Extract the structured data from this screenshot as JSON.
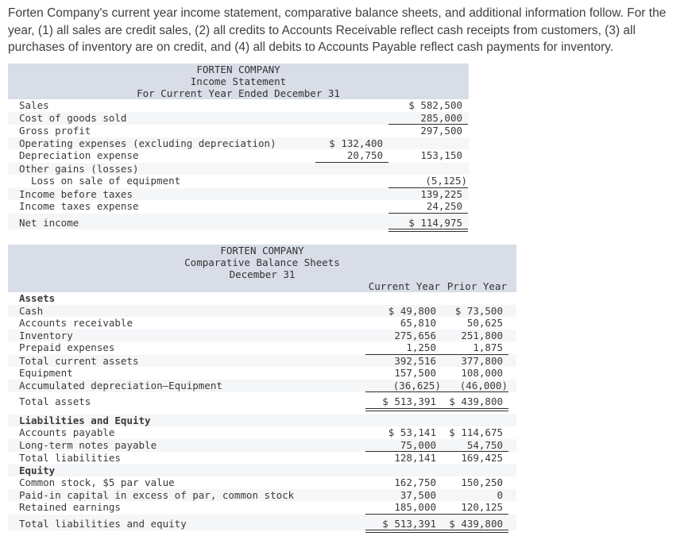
{
  "intro": "Forten Company's current year income statement, comparative balance sheets, and additional information follow. For the year, (1) all sales are credit sales, (2) all credits to Accounts Receivable reflect cash receipts from customers, (3) all purchases of inventory are on credit, and (4) all debits to Accounts Payable reflect cash payments for inventory.",
  "colors": {
    "header_band": "#d9dde7",
    "row_stripe": "#f5f6f8",
    "text": "#3a3a3a",
    "rule_line": "#2e2e2e"
  },
  "income_statement": {
    "title_lines": [
      "FORTEN COMPANY",
      "Income Statement",
      "For Current Year Ended December 31"
    ],
    "rows": [
      {
        "label": "Sales",
        "col2": "$ 582,500"
      },
      {
        "label": "Cost of goods sold",
        "col2": "285,000",
        "col2_line": true
      },
      {
        "label": "Gross profit",
        "col2": "297,500"
      },
      {
        "label": "Operating expenses (excluding depreciation)",
        "col1": "$ 132,400"
      },
      {
        "label": "Depreciation expense",
        "col1": "20,750",
        "col1_line": true,
        "col2": "153,150"
      },
      {
        "label": "Other gains (losses)"
      },
      {
        "label": "Loss on sale of equipment",
        "indent": true,
        "col2": "(5,125)",
        "col2_line": true
      },
      {
        "label": "Income before taxes",
        "col2": "139,225"
      },
      {
        "label": "Income taxes expense",
        "col2": "24,250",
        "col2_line": true
      },
      {
        "label": "Net income",
        "col2": "$ 114,975",
        "col2_double": true,
        "total": true
      }
    ]
  },
  "balance_sheet": {
    "title_lines": [
      "FORTEN COMPANY",
      "Comparative Balance Sheets",
      "December 31"
    ],
    "col_headers": [
      "Current Year",
      "Prior Year"
    ],
    "rows": [
      {
        "label": "Assets",
        "bold": true
      },
      {
        "label": "Cash",
        "col1": "$ 49,800",
        "col2": "$ 73,500"
      },
      {
        "label": "Accounts receivable",
        "col1": "65,810",
        "col2": "50,625"
      },
      {
        "label": "Inventory",
        "col1": "275,656",
        "col2": "251,800"
      },
      {
        "label": "Prepaid expenses",
        "col1": "1,250",
        "col2": "1,875",
        "line": true
      },
      {
        "label": "Total current assets",
        "col1": "392,516",
        "col2": "377,800"
      },
      {
        "label": "Equipment",
        "col1": "157,500",
        "col2": "108,000"
      },
      {
        "label": "Accumulated depreciation—Equipment",
        "col1": "(36,625)",
        "col2": "(46,000)",
        "line": true
      },
      {
        "label": "Total assets",
        "col1": "$ 513,391",
        "col2": "$ 439,800",
        "double": true,
        "total": true
      },
      {
        "label": "Liabilities and Equity",
        "bold": true
      },
      {
        "label": "Accounts payable",
        "col1": "$ 53,141",
        "col2": "$ 114,675"
      },
      {
        "label": "Long-term notes payable",
        "col1": "75,000",
        "col2": "54,750",
        "line": true
      },
      {
        "label": "Total liabilities",
        "col1": "128,141",
        "col2": "169,425"
      },
      {
        "label": "Equity",
        "bold": true
      },
      {
        "label": "Common stock, $5 par value",
        "col1": "162,750",
        "col2": "150,250"
      },
      {
        "label": "Paid-in capital in excess of par, common stock",
        "col1": "37,500",
        "col2": "0"
      },
      {
        "label": "Retained earnings",
        "col1": "185,000",
        "col2": "120,125",
        "line": true
      },
      {
        "label": "Total liabilities and equity",
        "col1": "$ 513,391",
        "col2": "$ 439,800",
        "double": true,
        "total": true
      }
    ]
  }
}
